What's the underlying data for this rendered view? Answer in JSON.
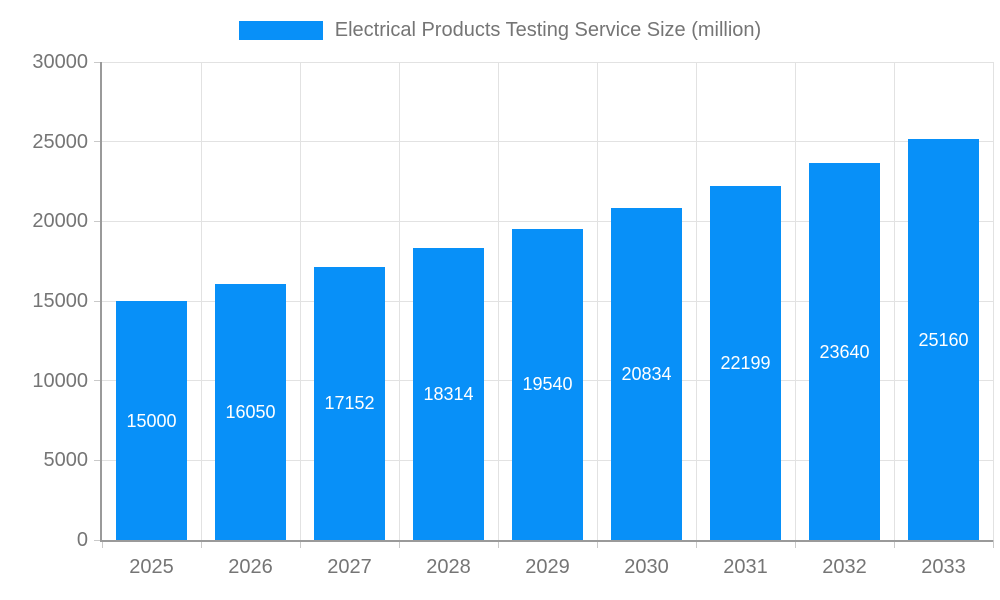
{
  "chart_data": {
    "type": "bar",
    "title": "Electrical Products Testing Service Size (million)",
    "categories": [
      "2025",
      "2026",
      "2027",
      "2028",
      "2029",
      "2030",
      "2031",
      "2032",
      "2033"
    ],
    "values": [
      15000,
      16050,
      17152,
      18314,
      19540,
      20834,
      22199,
      23640,
      25160
    ],
    "value_labels": [
      "15000",
      "16050",
      "17152",
      "18314",
      "19540",
      "20834",
      "22199",
      "23640",
      "25160"
    ],
    "value_label_position": "inside-center",
    "xlabel": "",
    "ylabel": "",
    "ylim": [
      0,
      30000
    ],
    "yticks": [
      0,
      5000,
      10000,
      15000,
      20000,
      25000,
      30000
    ],
    "ytick_labels": [
      "0",
      "5000",
      "10000",
      "15000",
      "20000",
      "25000",
      "30000"
    ],
    "grid": true,
    "legend_position": "top-center"
  },
  "colors": {
    "bar": "#0890f8",
    "bar_value_text": "#ffffff",
    "axis_text": "#757575",
    "axis_line": "#9a9a9a",
    "gridline": "#e2e2e2",
    "tick": "#c9c9c9",
    "background": "#ffffff"
  }
}
